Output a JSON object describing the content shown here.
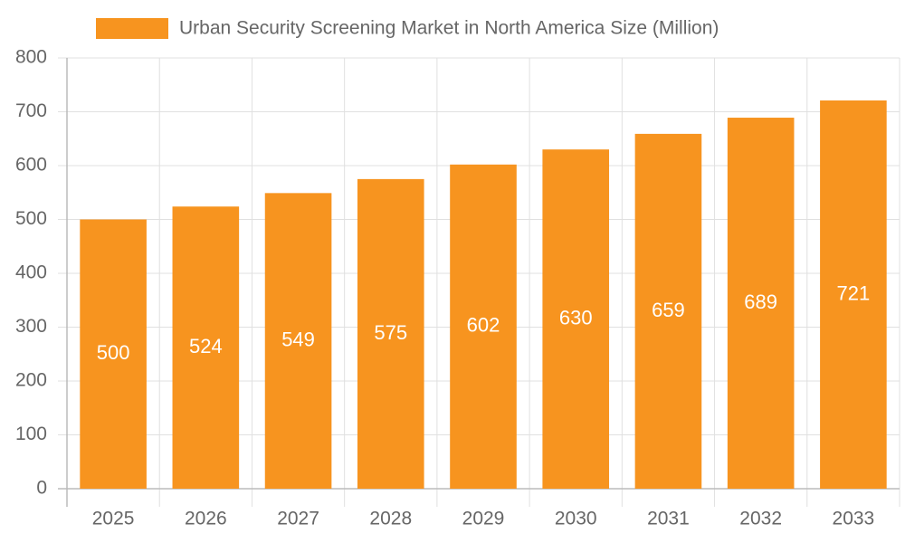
{
  "chart_data": {
    "type": "bar",
    "categories": [
      "2025",
      "2026",
      "2027",
      "2028",
      "2029",
      "2030",
      "2031",
      "2032",
      "2033"
    ],
    "series": [
      {
        "name": "Urban Security Screening Market in North America Size (Million)",
        "color": "#f7941f",
        "values": [
          500,
          524,
          549,
          575,
          602,
          630,
          659,
          689,
          721
        ]
      }
    ],
    "ylim": [
      0,
      800
    ],
    "yticks": [
      0,
      100,
      200,
      300,
      400,
      500,
      600,
      700,
      800
    ],
    "grid": true
  }
}
